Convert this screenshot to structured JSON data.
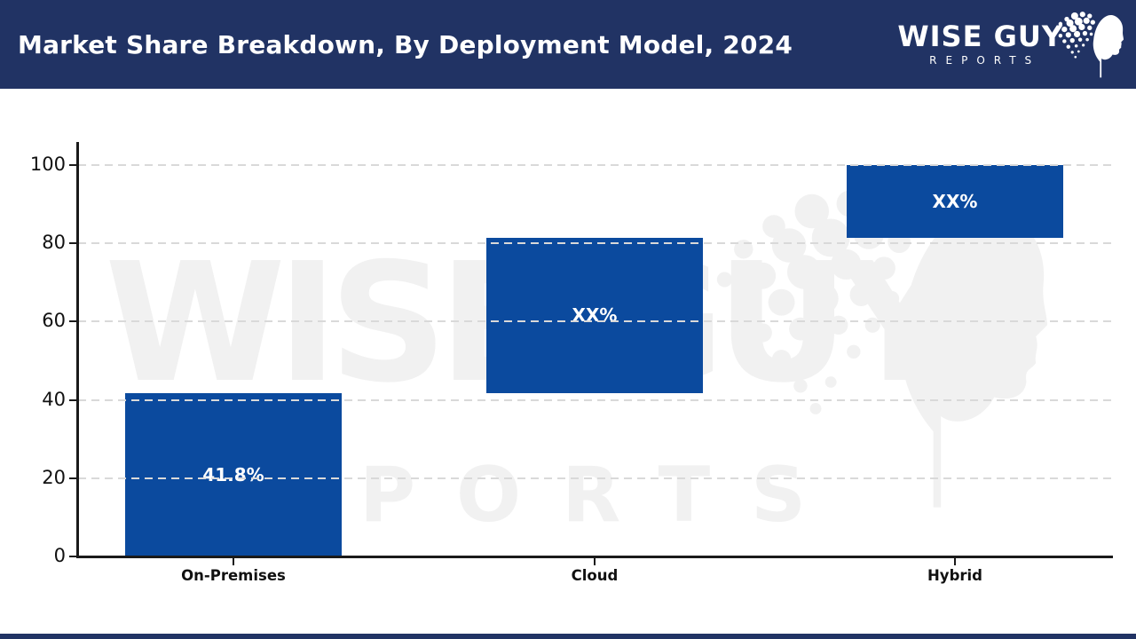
{
  "header": {
    "title": "Market Share Breakdown, By Deployment Model, 2024",
    "logo": {
      "line1": "WISE GUY",
      "line2": "REPORTS"
    }
  },
  "watermark": {
    "line1": "WISE GUY",
    "line2": "REPORTS"
  },
  "colors": {
    "header_bg": "#213364",
    "footer_bg": "#213364",
    "title_text": "#ffffff",
    "bar": "#0b4a9e",
    "bar_label": "#ffffff",
    "gridline": "#d9d9d9",
    "axis": "#1a1a1a",
    "watermark": "#f1f1f1"
  },
  "chart_data": {
    "type": "bar",
    "variant": "floating-waterfall",
    "title": "Market Share Breakdown, By Deployment Model, 2024",
    "categories": [
      "On-Premises",
      "Cloud",
      "Hybrid"
    ],
    "segments": [
      {
        "category": "On-Premises",
        "start": 0,
        "end": 41.8,
        "label": "41.8%"
      },
      {
        "category": "Cloud",
        "start": 41.8,
        "end": 81.5,
        "label": "XX%"
      },
      {
        "category": "Hybrid",
        "start": 81.5,
        "end": 100,
        "label": "XX%"
      }
    ],
    "xlabel": "",
    "ylabel": "",
    "ylim": [
      0,
      100
    ],
    "yticks": [
      0,
      20,
      40,
      60,
      80,
      100
    ],
    "ytick_labels": [
      "0",
      "20",
      "40",
      "60",
      "80",
      "100"
    ],
    "grid": "horizontal-dashed",
    "gridlines_above_bars": true,
    "legend": "none"
  }
}
